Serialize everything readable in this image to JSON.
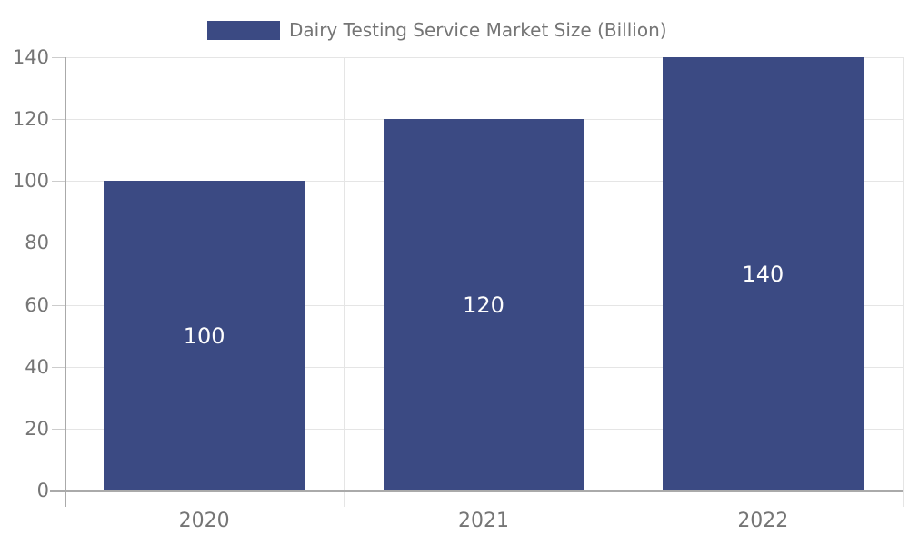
{
  "chart_data": {
    "type": "bar",
    "title": "Dairy Testing Service Market Size (Billion)",
    "legend_entries": [
      "Dairy Testing Service Market Size (Billion)"
    ],
    "categories": [
      "2020",
      "2021",
      "2022"
    ],
    "values": [
      100,
      120,
      140
    ],
    "bar_value_labels": [
      "100",
      "120",
      "140"
    ],
    "xlabel": "",
    "ylabel": "",
    "ylim": [
      0,
      140
    ],
    "yticks": [
      0,
      20,
      40,
      60,
      80,
      100,
      120,
      140
    ],
    "grid": true,
    "legend_position": "top-center"
  },
  "colors": {
    "bar_fill": "#3b4a83",
    "bar_label_text": "#fdfdfd",
    "grid_line": "#e5e5e5",
    "axis_line": "#aaaaaa",
    "tick_mark": "#cccccc",
    "axis_text": "#757575",
    "legend_text": "#757575",
    "background": "#ffffff"
  }
}
